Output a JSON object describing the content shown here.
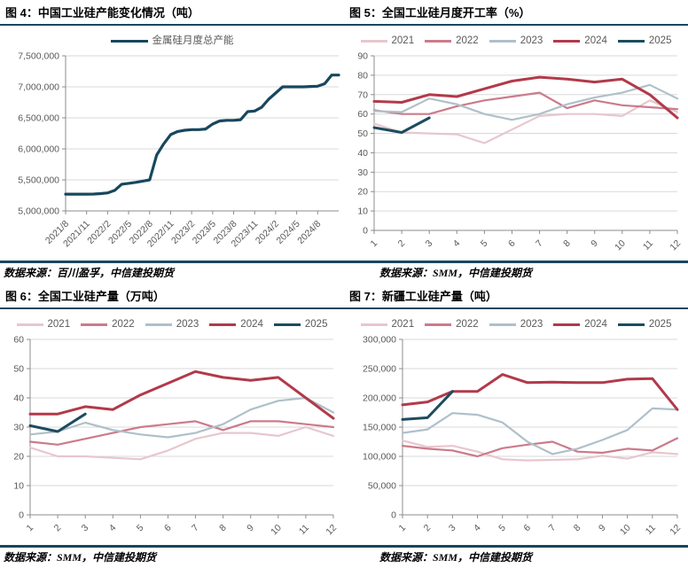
{
  "page": {
    "background": "#ffffff"
  },
  "colors": {
    "rule": "#17475e",
    "grid": "#d9d9d9",
    "axis": "#8c8c8c",
    "tick_text": "#595959"
  },
  "figures": [
    {
      "id": "fig4",
      "title": "图 4：中国工业硅产能变化情况（吨）",
      "source": "数据来源：百川盈孚，中信建投期货",
      "chart_data": {
        "type": "line",
        "title": "中国工业硅产能变化情况（吨）",
        "grid": true,
        "legend_position": "top",
        "ylim": [
          5000000,
          7500000
        ],
        "y_step": 500000,
        "y_comma": true,
        "x_labels": [
          "2021/8",
          "2021/11",
          "2022/2",
          "2022/5",
          "2022/8",
          "2022/11",
          "2023/2",
          "2023/5",
          "2023/8",
          "2023/11",
          "2024/2",
          "2024/5",
          "2024/8"
        ],
        "x_tick_every": 3,
        "series": [
          {
            "name": "金属硅月度总产能",
            "color": "#17475e",
            "width": 3.2,
            "values": [
              5270000,
              5270000,
              5270000,
              5270000,
              5272000,
              5278000,
              5290000,
              5330000,
              5430000,
              5445000,
              5460000,
              5480000,
              5500000,
              5900000,
              6080000,
              6230000,
              6280000,
              6300000,
              6310000,
              6310000,
              6320000,
              6400000,
              6450000,
              6460000,
              6460000,
              6470000,
              6600000,
              6610000,
              6670000,
              6800000,
              6900000,
              7000000,
              7000000,
              7000000,
              7000000,
              7005000,
              7010000,
              7050000,
              7190000,
              7190000
            ]
          }
        ]
      }
    },
    {
      "id": "fig5",
      "title": "图 5：全国工业硅月度开工率（%）",
      "source": "数据来源：SMM，中信建投期货",
      "chart_data": {
        "type": "line",
        "title": "全国工业硅月度开工率（%）",
        "grid": true,
        "legend_position": "top",
        "ylim": [
          0,
          90
        ],
        "y_step": 10,
        "y_comma": false,
        "x_labels": [
          "1",
          "2",
          "3",
          "4",
          "5",
          "6",
          "7",
          "8",
          "9",
          "10",
          "11",
          "12"
        ],
        "x_tick_every": 1,
        "series": [
          {
            "name": "2021",
            "color": "#e7c7ce",
            "width": 2.2,
            "values": [
              55,
              50.5,
              50,
              49.5,
              45,
              52,
              59,
              60,
              60,
              59,
              67,
              61
            ]
          },
          {
            "name": "2022",
            "color": "#cb7b8b",
            "width": 2.2,
            "values": [
              62,
              60,
              60,
              64,
              67,
              69,
              71,
              63,
              67,
              64.5,
              63.5,
              62.5
            ]
          },
          {
            "name": "2023",
            "color": "#afc0ca",
            "width": 2.2,
            "values": [
              61.5,
              61,
              68,
              65,
              60,
              57,
              60,
              65,
              68.5,
              71,
              75,
              68
            ]
          },
          {
            "name": "2024",
            "color": "#b13a4a",
            "width": 3,
            "values": [
              66.5,
              66,
              70,
              69,
              73,
              77,
              79,
              78,
              76.5,
              78,
              70,
              58
            ]
          },
          {
            "name": "2025",
            "color": "#1c4c5e",
            "width": 3,
            "values": [
              53,
              50.5,
              58
            ]
          }
        ]
      }
    },
    {
      "id": "fig6",
      "title": "图 6：全国工业硅产量（万吨）",
      "source": "数据来源：SMM，中信建投期货",
      "chart_data": {
        "type": "line",
        "title": "全国工业硅产量（万吨）",
        "grid": true,
        "legend_position": "top",
        "ylim": [
          0,
          60
        ],
        "y_step": 10,
        "y_comma": false,
        "x_labels": [
          "1",
          "2",
          "3",
          "4",
          "5",
          "6",
          "7",
          "8",
          "9",
          "10",
          "11",
          "12"
        ],
        "x_tick_every": 1,
        "series": [
          {
            "name": "2021",
            "color": "#e7c7ce",
            "width": 2.2,
            "values": [
              23,
              20,
              20,
              19.5,
              19,
              22,
              26,
              28,
              28,
              27,
              30,
              27
            ]
          },
          {
            "name": "2022",
            "color": "#cb7b8b",
            "width": 2.2,
            "values": [
              25,
              24,
              26,
              28,
              30,
              31,
              32,
              29,
              32,
              32,
              31,
              30
            ]
          },
          {
            "name": "2023",
            "color": "#afc0ca",
            "width": 2.2,
            "values": [
              27.5,
              28.5,
              31.5,
              29,
              27.5,
              26.5,
              28,
              31,
              36,
              39,
              40,
              35
            ]
          },
          {
            "name": "2024",
            "color": "#b13a4a",
            "width": 3,
            "values": [
              34.5,
              34.5,
              37,
              36,
              41,
              45,
              49,
              47,
              46,
              47,
              40,
              33
            ]
          },
          {
            "name": "2025",
            "color": "#1c4c5e",
            "width": 3,
            "values": [
              30.5,
              28.5,
              34.5
            ]
          }
        ]
      }
    },
    {
      "id": "fig7",
      "title": "图 7：新疆工业硅产量（吨）",
      "source": "数据来源：SMM，中信建投期货",
      "chart_data": {
        "type": "line",
        "title": "新疆工业硅产量（吨）",
        "grid": true,
        "legend_position": "top",
        "ylim": [
          0,
          300000
        ],
        "y_step": 50000,
        "y_comma": true,
        "x_labels": [
          "1",
          "2",
          "3",
          "4",
          "5",
          "6",
          "7",
          "8",
          "9",
          "10",
          "11",
          "12"
        ],
        "x_tick_every": 1,
        "series": [
          {
            "name": "2021",
            "color": "#e7c7ce",
            "width": 2.2,
            "values": [
              127000,
              116000,
              118000,
              108000,
              95000,
              93000,
              94000,
              95000,
              101000,
              96000,
              107000,
              104000
            ]
          },
          {
            "name": "2022",
            "color": "#cb7b8b",
            "width": 2.2,
            "values": [
              118000,
              113000,
              110000,
              100000,
              114000,
              120000,
              125000,
              108000,
              106000,
              113000,
              110000,
              131000
            ]
          },
          {
            "name": "2023",
            "color": "#afc0ca",
            "width": 2.2,
            "values": [
              140000,
              146000,
              174000,
              171000,
              158000,
              125000,
              104000,
              113000,
              128000,
              145000,
              182000,
              180000
            ]
          },
          {
            "name": "2024",
            "color": "#b13a4a",
            "width": 3,
            "values": [
              188000,
              193000,
              211000,
              211000,
              240000,
              226000,
              227000,
              226000,
              226000,
              232000,
              233000,
              180000
            ]
          },
          {
            "name": "2025",
            "color": "#1c4c5e",
            "width": 3,
            "values": [
              163000,
              166000,
              211000
            ]
          }
        ]
      }
    }
  ]
}
